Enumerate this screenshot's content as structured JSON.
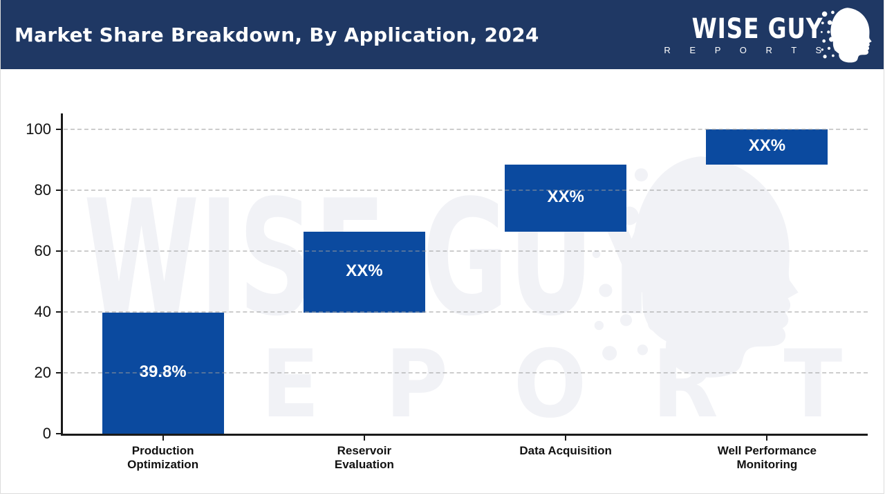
{
  "header": {
    "title": "Market Share Breakdown, By Application, 2024",
    "logo": {
      "line1": "WISE GUY",
      "line2": "R E P O R T S"
    }
  },
  "watermark": {
    "line1": "WISE GUY",
    "line2": "R E P O R T S"
  },
  "chart_data": {
    "type": "bar",
    "subtype": "waterfall",
    "title": "Market Share Breakdown, By Application, 2024",
    "categories": [
      "Production Optimization",
      "Reservoir Evaluation",
      "Data Acquisition",
      "Well Performance Monitoring"
    ],
    "category_lines": [
      [
        "Production",
        "Optimization"
      ],
      [
        "Reservoir",
        "Evaluation"
      ],
      [
        "Data Acquisition"
      ],
      [
        "Well Performance",
        "Monitoring"
      ]
    ],
    "segments": [
      {
        "category": "Production Optimization",
        "start": 0,
        "end": 39.8,
        "label": "39.8%"
      },
      {
        "category": "Reservoir Evaluation",
        "start": 39.8,
        "end": 66.4,
        "label": "XX%"
      },
      {
        "category": "Data Acquisition",
        "start": 66.4,
        "end": 88.5,
        "label": "XX%"
      },
      {
        "category": "Well Performance Monitoring",
        "start": 88.5,
        "end": 100,
        "label": "XX%"
      }
    ],
    "yticks": [
      0,
      20,
      40,
      60,
      80,
      100
    ],
    "ylim": [
      0,
      105
    ],
    "xlabel": "",
    "ylabel": "",
    "grid": "dashed-horizontal",
    "legend": "none"
  },
  "colors": {
    "header_bg": "#1F3864",
    "bar": "#0B4A9F",
    "axis": "#1a1a1a",
    "grid": "#9b9b9b",
    "text": "#111111",
    "bar_label": "#ffffff",
    "title": "#ffffff",
    "logo": "#ffffff",
    "watermark": "#f1f2f6",
    "card_border": "#dcdcdc"
  }
}
